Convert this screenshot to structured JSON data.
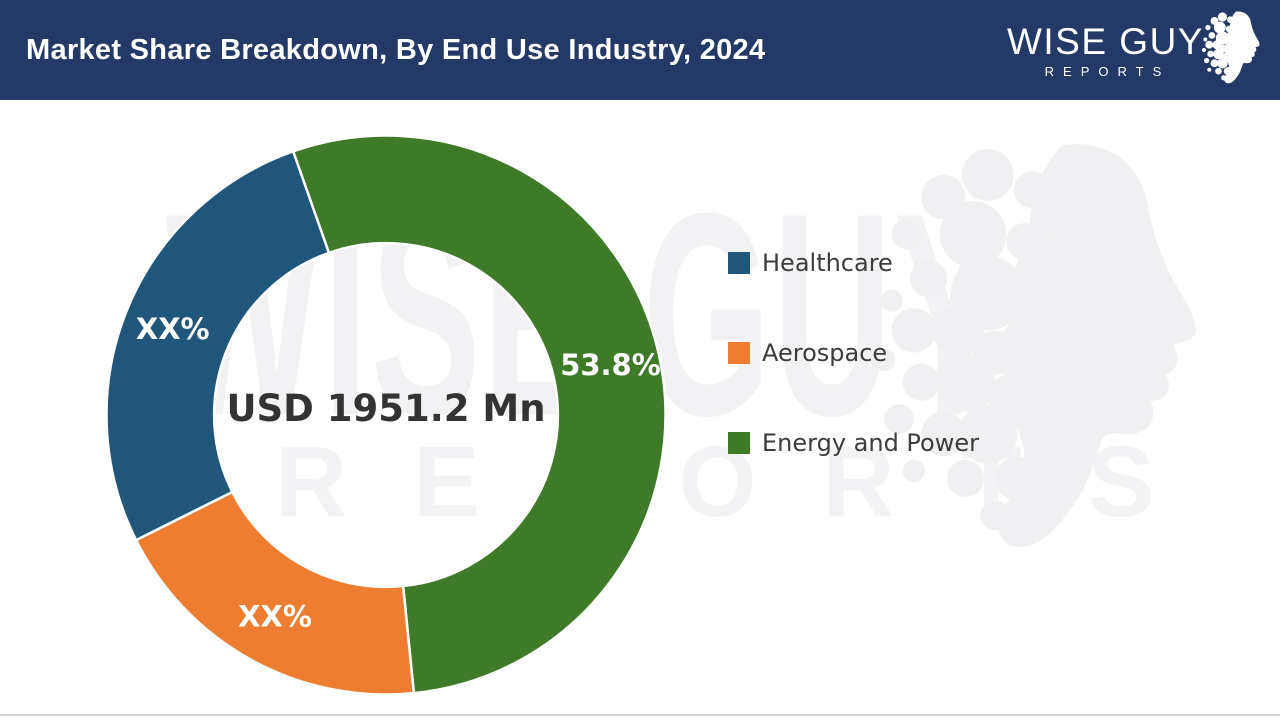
{
  "header": {
    "title": "Market Share Breakdown, By End Use Industry, 2024",
    "bg_color": "#233A66",
    "logo": {
      "line1": "WISE GUY",
      "line2": "REPORTS"
    }
  },
  "watermark": {
    "line1": "WISE GUY",
    "line2": "REPORTS"
  },
  "chart_data": {
    "type": "pie",
    "subtype": "donut",
    "title": "Market Share Breakdown, By End Use Industry, 2024",
    "center_label": "USD 1951.2 Mn",
    "unit": "percent of market share",
    "clockwise": true,
    "start_angle_deg": -19.4,
    "inner_radius_ratio": 0.615,
    "legend_position": "right",
    "segments": [
      {
        "name": "Healthcare",
        "displayed_label": "XX%",
        "value_pct": 27.0,
        "value_shown": false,
        "color": "#20567A"
      },
      {
        "name": "Aerospace",
        "displayed_label": "XX%",
        "value_pct": 19.2,
        "value_shown": false,
        "color": "#ED7D31"
      },
      {
        "name": "Energy and Power",
        "displayed_label": "53.8%",
        "value_pct": 53.8,
        "value_shown": true,
        "color": "#3E7A28"
      }
    ],
    "draw_order": [
      2,
      1,
      0
    ]
  }
}
